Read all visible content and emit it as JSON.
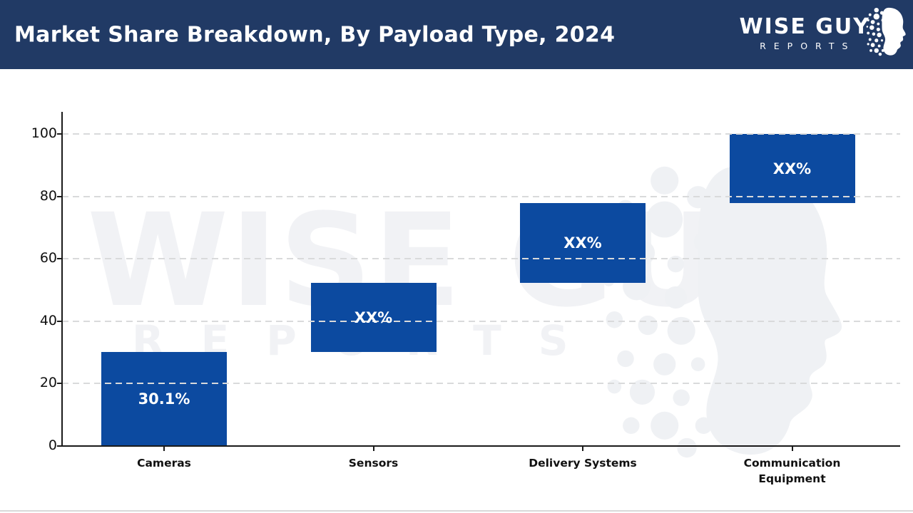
{
  "header": {
    "title": "Market Share Breakdown, By Payload Type, 2024",
    "bg_color": "#213a65",
    "logo": {
      "name": "WISE GUY",
      "subtitle": "REPORTS",
      "icon": "dotted-head-profile"
    }
  },
  "watermark": {
    "title": "WISE GUY",
    "subtitle": "REPORTS",
    "icon": "dotted-head-profile"
  },
  "chart_data": {
    "type": "bar",
    "subtype": "waterfall",
    "title": "Market Share Breakdown, By Payload Type, 2024",
    "xlabel": "",
    "ylabel": "",
    "ylim": [
      0,
      105
    ],
    "yticks": [
      0,
      20,
      40,
      60,
      80,
      100
    ],
    "grid": "horizontal-dashed",
    "legend": "none",
    "bar_color": "#0c4aa0",
    "bar_label_color": "#ffffff",
    "categories": [
      "Cameras",
      "Sensors",
      "Delivery Systems",
      "Communication Equipment"
    ],
    "segments": [
      {
        "category": "Cameras",
        "start": 0,
        "end": 30.1,
        "label": "30.1%"
      },
      {
        "category": "Sensors",
        "start": 30.1,
        "end": 52.3,
        "label": "XX%"
      },
      {
        "category": "Delivery Systems",
        "start": 52.3,
        "end": 77.8,
        "label": "XX%"
      },
      {
        "category": "Communication Equipment",
        "start": 77.8,
        "end": 100,
        "label": "XX%"
      }
    ]
  }
}
